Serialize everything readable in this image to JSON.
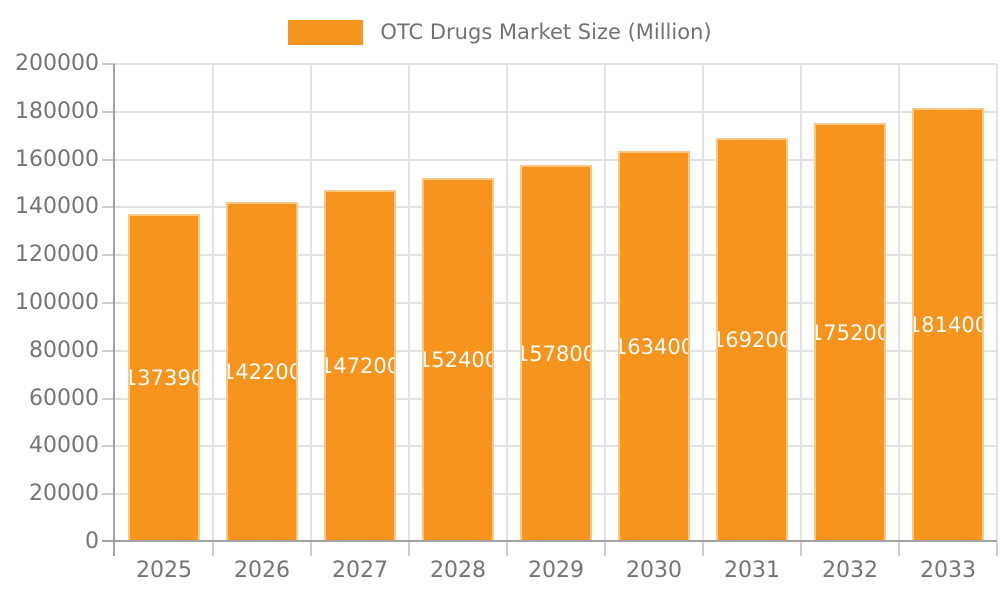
{
  "chart_data": {
    "type": "bar",
    "title": "OTC Drugs Market Size (Million)",
    "legend": {
      "label": "OTC Drugs Market Size (Million)",
      "position": "top"
    },
    "categories": [
      "2025",
      "2026",
      "2027",
      "2028",
      "2029",
      "2030",
      "2031",
      "2032",
      "2033"
    ],
    "series": [
      {
        "name": "OTC Drugs Market Size (Million)",
        "values": [
          137390,
          142200,
          147200,
          152400,
          157800,
          163400,
          169200,
          175200,
          181400
        ]
      }
    ],
    "bar_value_labels": [
      "137390",
      "142200",
      "147200",
      "152400",
      "157800",
      "163400",
      "169200",
      "175200",
      "181400"
    ],
    "xlabel": "",
    "ylabel": "",
    "ylim": [
      0,
      200000
    ],
    "ytick_step": 20000,
    "yticks": [
      0,
      20000,
      40000,
      60000,
      80000,
      100000,
      120000,
      140000,
      160000,
      180000,
      200000
    ],
    "grid": true,
    "value_label_position": "inside-center",
    "colors": {
      "bar": "#f7941e",
      "bar_border": "#fbc887",
      "bar_label_text": "#ffffff",
      "grid_line": "#e2e2e2",
      "axis_line": "#a2a2a2",
      "tick_line": "#cccccc",
      "axis_text": "#757575",
      "legend_text": "#737373",
      "background": "#ffffff"
    }
  }
}
